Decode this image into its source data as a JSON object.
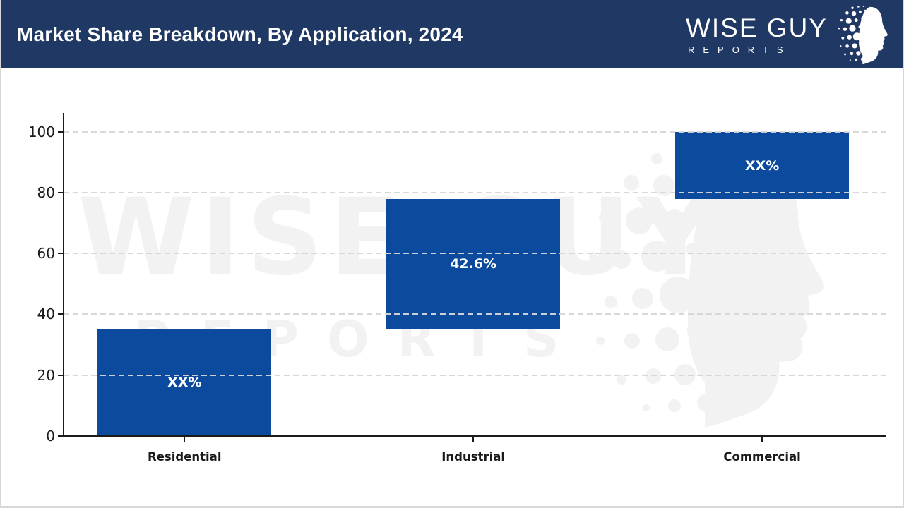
{
  "header": {
    "title": "Market Share Breakdown, By Application, 2024",
    "brand_line1": "WISE GUY",
    "brand_line2": "REPORTS"
  },
  "watermark": {
    "line1": "WISE GUY",
    "line2": "REPORTS"
  },
  "chart_data": {
    "type": "bar",
    "subtype": "waterfall-floating-bars",
    "title": "Market Share Breakdown, By Application, 2024",
    "categories": [
      "Residential",
      "Industrial",
      "Commercial"
    ],
    "segments": [
      {
        "category": "Residential",
        "start": 0,
        "end": 35.2,
        "label": "XX%"
      },
      {
        "category": "Industrial",
        "start": 35.2,
        "end": 77.8,
        "label": "42.6%"
      },
      {
        "category": "Commercial",
        "start": 77.8,
        "end": 100,
        "label": "XX%"
      }
    ],
    "yticks": [
      0,
      20,
      40,
      60,
      80,
      100
    ],
    "ylim": [
      0,
      100
    ],
    "xlabel": "",
    "ylabel": "",
    "legend": "none",
    "grid": "horizontal dashed, drawn above bars"
  },
  "colors": {
    "header_bg": "#1f3864",
    "bar": "#0c4a9e",
    "bar_label": "#ffffff",
    "grid": "#d6d6d6",
    "axis": "#1a1a1a",
    "watermark": "#f2f2f2",
    "page_border": "#d8d8d8"
  }
}
